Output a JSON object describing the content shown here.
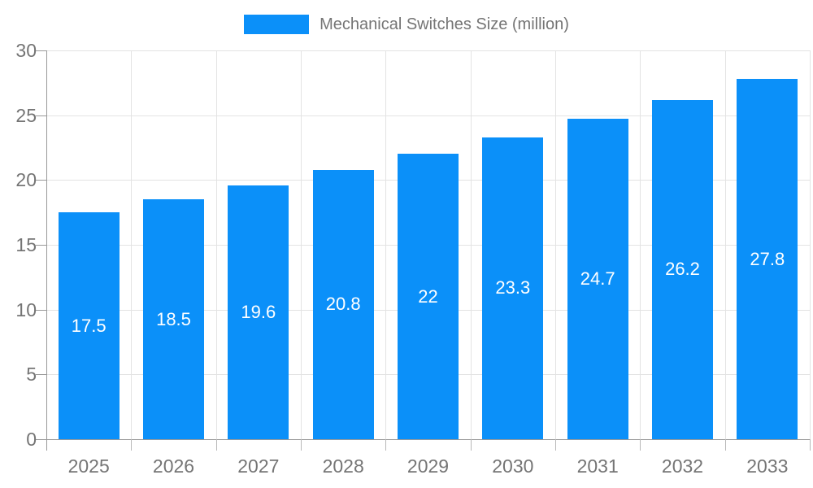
{
  "chart_data": {
    "type": "bar",
    "title": "Mechanical Switches Size (million)",
    "legend": {
      "label": "Mechanical Switches Size (million)",
      "position": "top"
    },
    "categories": [
      "2025",
      "2026",
      "2027",
      "2028",
      "2029",
      "2030",
      "2031",
      "2032",
      "2033"
    ],
    "series": [
      {
        "name": "Mechanical Switches Size (million)",
        "values": [
          17.5,
          18.5,
          19.6,
          20.8,
          22,
          23.3,
          24.7,
          26.2,
          27.8
        ]
      }
    ],
    "value_labels": [
      "17.5",
      "18.5",
      "19.6",
      "20.8",
      "22",
      "23.3",
      "24.7",
      "26.2",
      "27.8"
    ],
    "xlabel": "",
    "ylabel": "",
    "ylim": [
      0,
      30
    ],
    "yticks": [
      0,
      5,
      10,
      15,
      20,
      25,
      30
    ],
    "grid": true,
    "colors": {
      "bar": "#0b90f9",
      "axis": "#999999",
      "grid": "#e3e3e3",
      "boundary_tick": "#b8b8b8",
      "label_text": "#757575",
      "value_text": "#ffffff",
      "background": "#ffffff"
    }
  }
}
